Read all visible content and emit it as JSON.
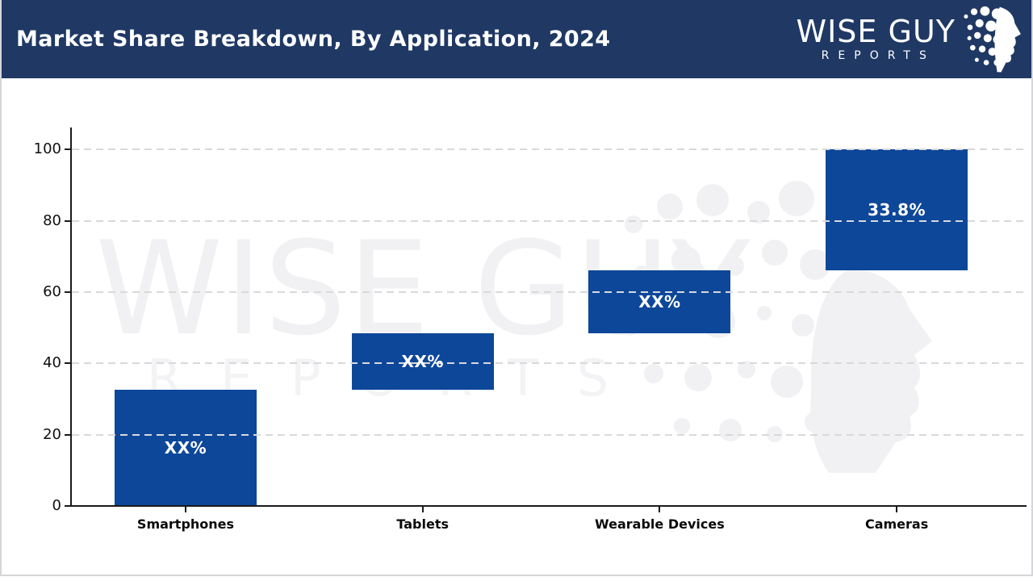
{
  "header": {
    "title": "Market Share Breakdown, By Application, 2024",
    "logo": {
      "primary": "WISE GUY",
      "secondary": "REPORTS"
    }
  },
  "watermark": {
    "primary": "WISE GUY",
    "secondary": "REPORTS"
  },
  "colors": {
    "header_bg": "#1f3864",
    "bar": "#0d4799",
    "bar_label": "#ffffff",
    "grid": "#d9d9d9",
    "axis": "#1a1a1a",
    "watermark": "#f1f1f4"
  },
  "chart_data": {
    "type": "bar",
    "subtype": "floating-waterfall",
    "title": "Market Share Breakdown, By Application, 2024",
    "categories": [
      "Smartphones",
      "Tablets",
      "Wearable Devices",
      "Cameras"
    ],
    "segments": [
      {
        "category": "Smartphones",
        "start": 0,
        "end": 32.6,
        "label": "XX%"
      },
      {
        "category": "Tablets",
        "start": 32.6,
        "end": 48.4,
        "label": "XX%"
      },
      {
        "category": "Wearable Devices",
        "start": 48.4,
        "end": 66.2,
        "label": "XX%"
      },
      {
        "category": "Cameras",
        "start": 66.2,
        "end": 100,
        "label": "33.8%"
      }
    ],
    "xlabel": "",
    "ylabel": "",
    "yticks": [
      0,
      20,
      40,
      60,
      80,
      100
    ],
    "ylim": [
      0,
      106
    ],
    "grid": "horizontal-dashed",
    "legend": "none",
    "bar_color": "#0d4799",
    "bar_label_color": "#ffffff"
  }
}
